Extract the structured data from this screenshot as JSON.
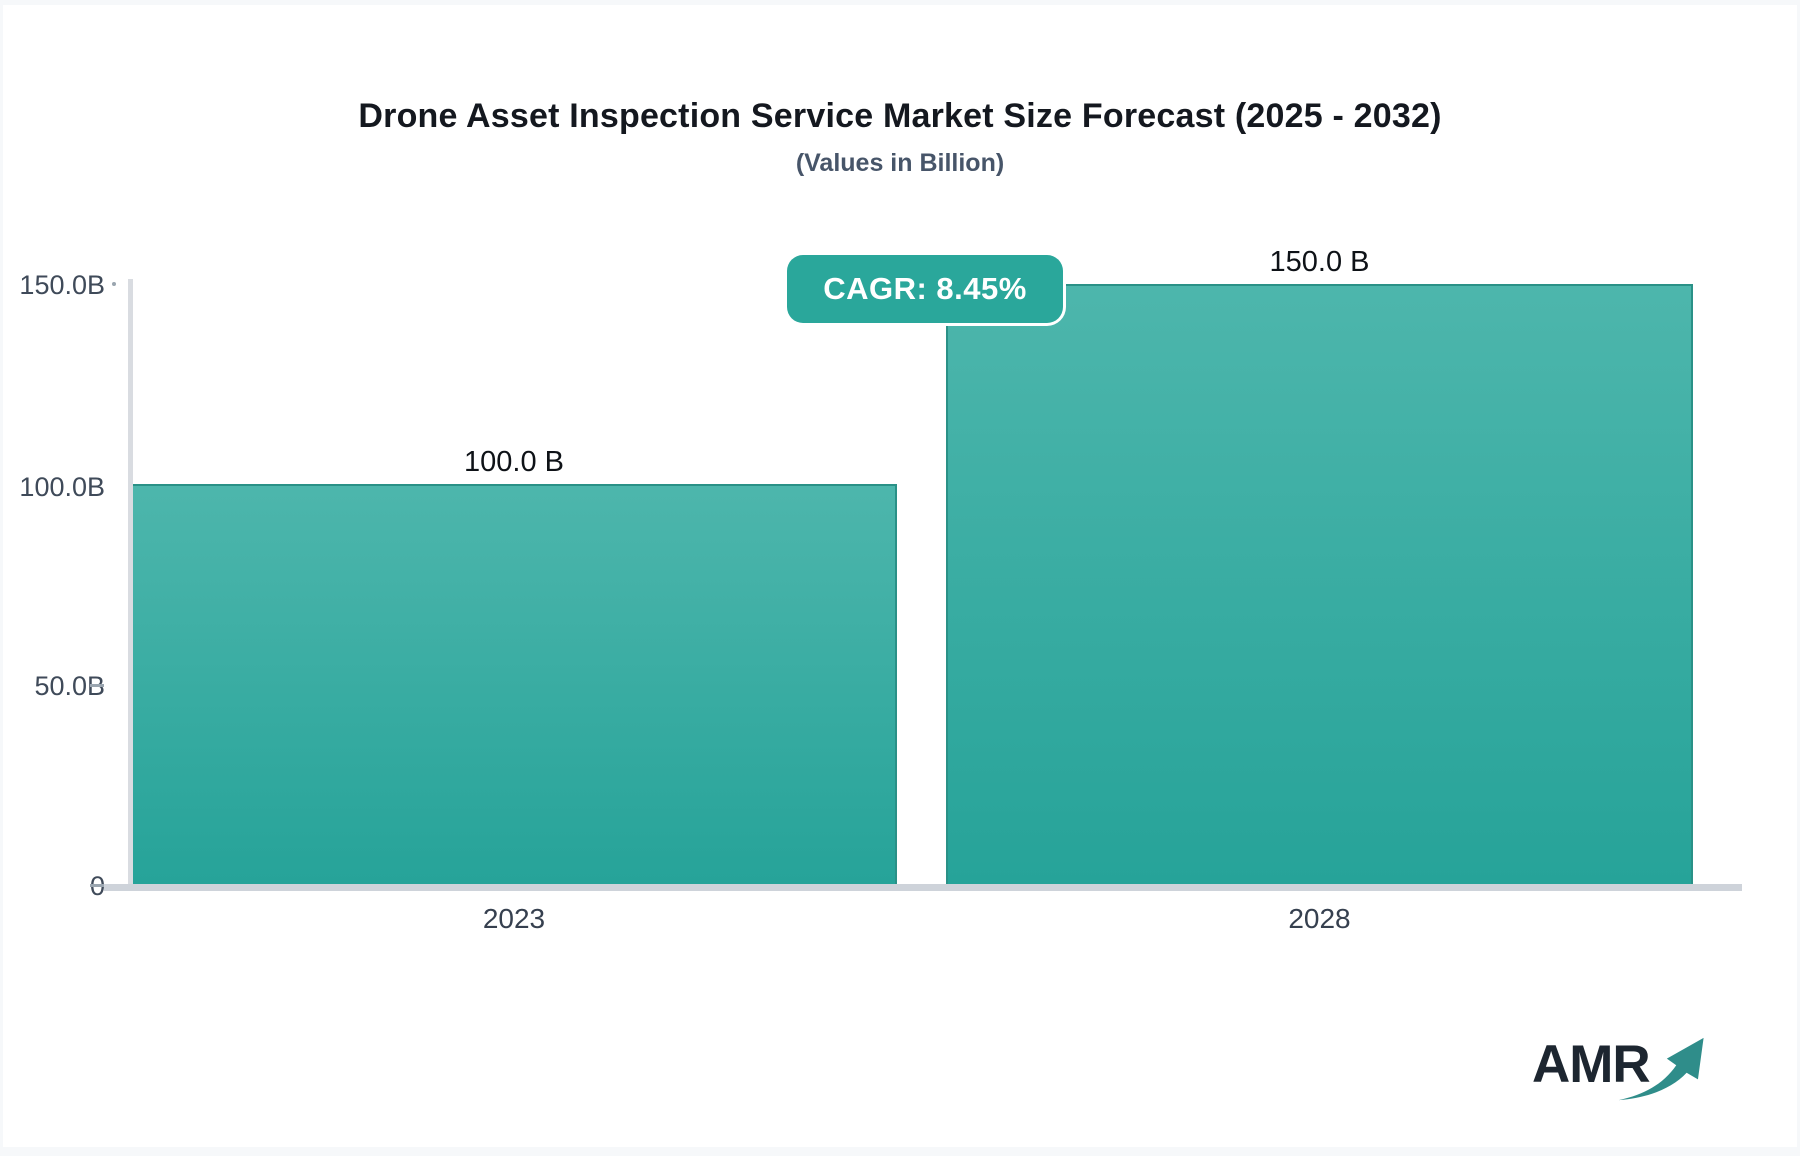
{
  "header": {
    "title": "Drone Asset Inspection Service Market Size Forecast (2025 - 2032)",
    "subtitle": "(Values in Billion)"
  },
  "badge": {
    "label": "CAGR: 8.45%"
  },
  "chart_data": {
    "type": "bar",
    "title": "Drone Asset Inspection Service Market Size Forecast (2025 - 2032)",
    "subtitle": "(Values in Billion)",
    "categories": [
      "2023",
      "2028"
    ],
    "values": [
      100.0,
      150.0
    ],
    "value_labels": [
      "100.0 B",
      "150.0 B"
    ],
    "unit": "Billion",
    "xlabel": "",
    "ylabel": "",
    "ylim": [
      0,
      150
    ],
    "y_ticks": [
      "150.0B",
      "100.0B",
      "50.0B",
      "0"
    ],
    "grid": false,
    "legend": "none",
    "cagr": "8.45%",
    "colors": {
      "bar_gradient_top": "#4db6ac",
      "bar_gradient_bottom": "#26a399",
      "bar_border": "#2a9187",
      "badge_background": "#2aa79b",
      "badge_text": "#ffffff",
      "axis_line": "#d9dce1",
      "baseline": "#ced3da",
      "axis_label": "#3f4a59",
      "title_text": "#14181f",
      "subtitle_text": "#475569"
    }
  },
  "logo": {
    "text": "AMR"
  }
}
